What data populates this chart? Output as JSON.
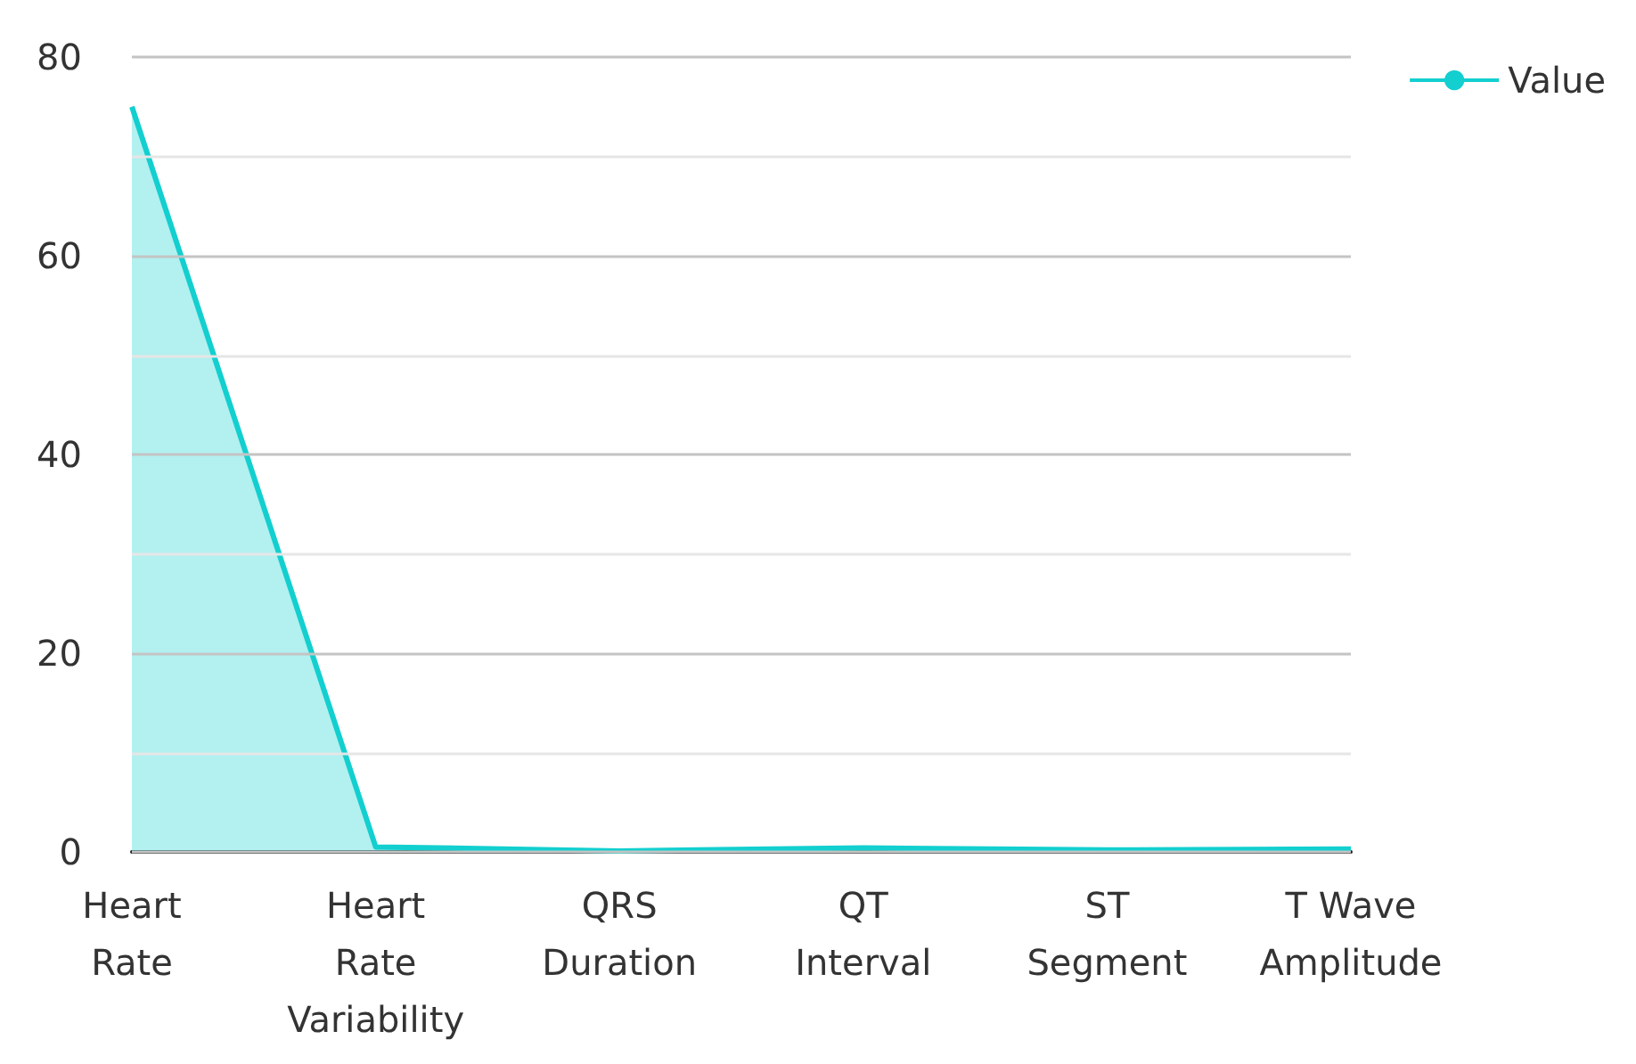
{
  "chart_data": {
    "type": "area",
    "categories": [
      "Heart\nRate",
      "Heart\nRate\nVariability",
      "QRS\nDuration",
      "QT\nInterval",
      "ST\nSegment",
      "T Wave\nAmplitude"
    ],
    "series": [
      {
        "name": "Value",
        "color": "#13cfcf",
        "values": [
          75,
          0.5,
          0.1,
          0.4,
          0.2,
          0.3
        ]
      }
    ],
    "ylim": [
      0,
      80
    ],
    "yticks": [
      0,
      {
        "value": 10,
        "label": null
      },
      20,
      {
        "value": 30,
        "label": null
      },
      40,
      {
        "value": 50,
        "label": null
      },
      60,
      {
        "value": 70,
        "label": null
      },
      80
    ],
    "grid": "y",
    "legend": "top right"
  }
}
